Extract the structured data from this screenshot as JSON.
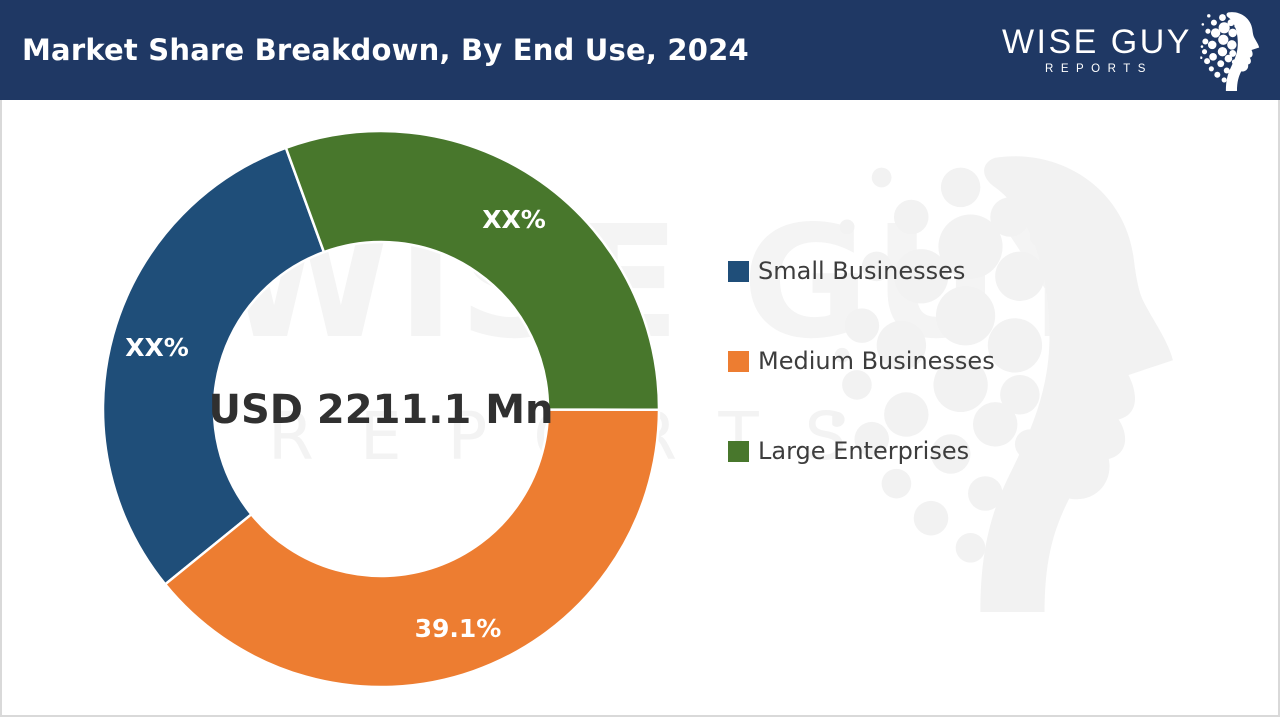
{
  "header": {
    "title": "Market Share Breakdown, By End Use, 2024",
    "logo": {
      "name": "WISE GUY",
      "tagline": "REPORTS"
    }
  },
  "watermark": {
    "name": "WISE GUY",
    "tagline": "REPORTS"
  },
  "chart_data": {
    "type": "pie",
    "subtype": "donut",
    "title": "Market Share Breakdown, By End Use, 2024",
    "center_label": "USD 2211.1 Mn",
    "categories": [
      "Small Businesses",
      "Medium Businesses",
      "Large Enterprises"
    ],
    "values": [
      30.3,
      39.1,
      30.6
    ],
    "slice_labels": [
      "XX%",
      "39.1%",
      "XX%"
    ],
    "colors": [
      "#1f4e79",
      "#ed7d31",
      "#48772c"
    ],
    "start_angle_deg": 110,
    "direction": "counterclockwise",
    "hole_ratio": 0.6,
    "legend_position": "right"
  },
  "colors": {
    "header_bg": "#1f3864",
    "border": "#d9d9d9",
    "center_text": "#303030",
    "legend_text": "#3d3d3d"
  }
}
